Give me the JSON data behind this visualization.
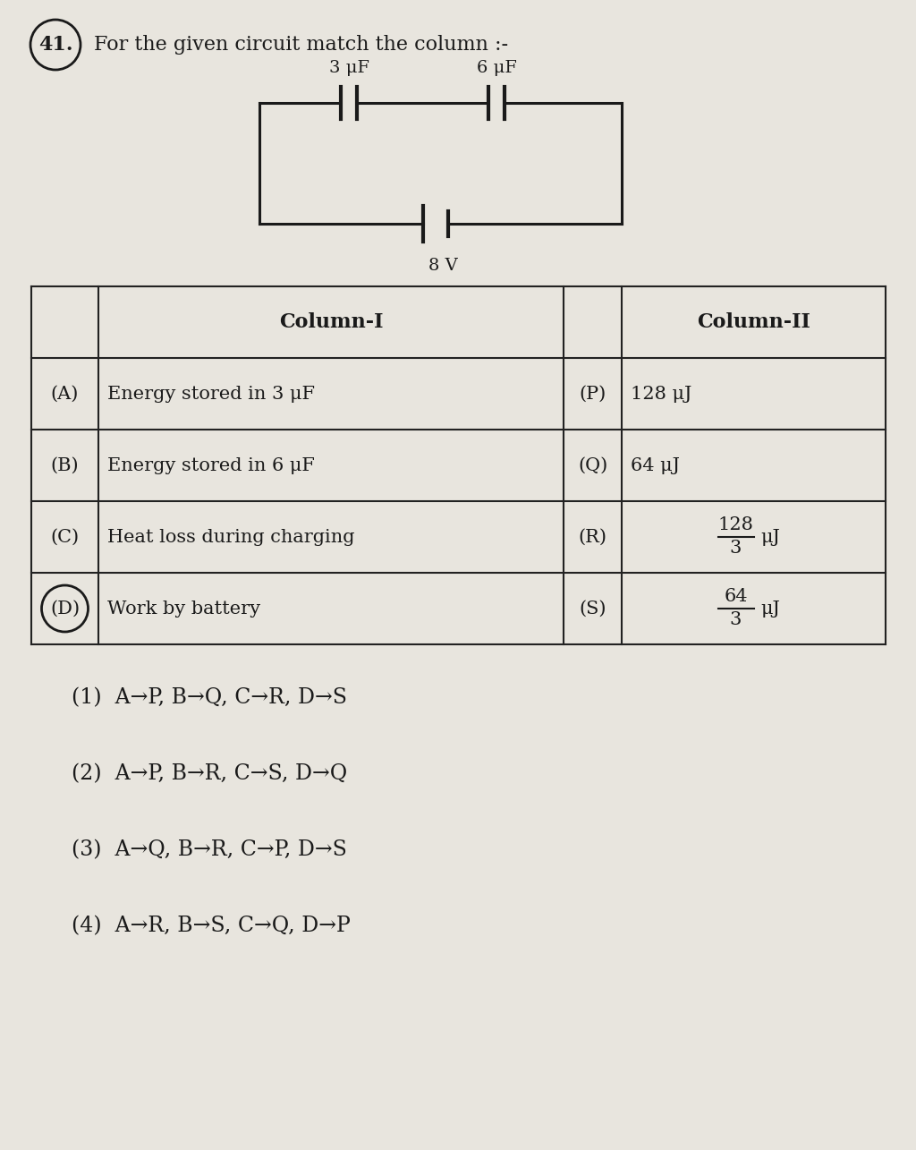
{
  "question_num": "41.",
  "question_text": "For the given circuit match the column :-",
  "cap1_label": "3 μF",
  "cap2_label": "6 μF",
  "battery_label": "8 V",
  "bg_color": "#d8d4cc",
  "paper_color": "#e8e5de",
  "table_header_col1": "Column-I",
  "table_header_col2": "Column-II",
  "table_rows": [
    {
      "left_id": "(A)",
      "left_text": "Energy stored in 3 μF",
      "right_id": "(P)",
      "right_text": "128 μJ"
    },
    {
      "left_id": "(B)",
      "left_text": "Energy stored in 6 μF",
      "right_id": "(Q)",
      "right_text": "64 μJ"
    },
    {
      "left_id": "(C)",
      "left_text": "Heat loss during charging",
      "right_id": "(R)",
      "right_text": "128/3 μJ"
    },
    {
      "left_id": "(D)",
      "left_text": "Work by battery",
      "right_id": "(S)",
      "right_text": "64/3 μJ",
      "d_circled": true
    }
  ],
  "options": [
    "(1)  A→P, B→Q, C→R, D→S",
    "(2)  A→P, B→R, C→S, D→Q",
    "(3)  A→Q, B→R, C→P, D→S",
    "(4)  A→R, B→S, C→Q, D→P"
  ],
  "text_color": "#1a1a1a",
  "table_line_color": "#222222",
  "font_size_question": 16,
  "font_size_circuit": 14,
  "font_size_table": 15,
  "font_size_options": 17
}
